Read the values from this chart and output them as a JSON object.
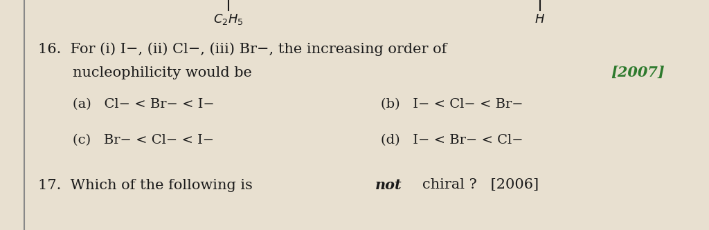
{
  "bg_color": "#e8e0d0",
  "text_color": "#1a1a1a",
  "green_color": "#2d7a2d",
  "question_number": "16.",
  "question_text": "For (i) I",
  "superscript_minus": "−",
  "q_part2": ", (ii) Cl",
  "q_part3": ", (iii) Br",
  "q_part4": ", the increasing order of",
  "q_line2": "nucleophilicity would be",
  "year_tag": "[2007]",
  "options": {
    "a": {
      "label": "(a)",
      "text": "Cl− < Br− < I−"
    },
    "b": {
      "label": "(b)",
      "text": "I− < Cl− < Br−"
    },
    "c": {
      "label": "(c)",
      "text": "Br− < Cl− < I−"
    },
    "d": {
      "label": "(d)",
      "text": "I− < Br− < Cl−"
    }
  },
  "top_labels": [
    "C₂H₅",
    "H"
  ],
  "bottom_text": "17.  Which of the following is",
  "bottom_italic": "not",
  "bottom_text2": "chiral ?   [2006]",
  "font_size_main": 15,
  "font_size_options": 14,
  "font_size_small": 12
}
